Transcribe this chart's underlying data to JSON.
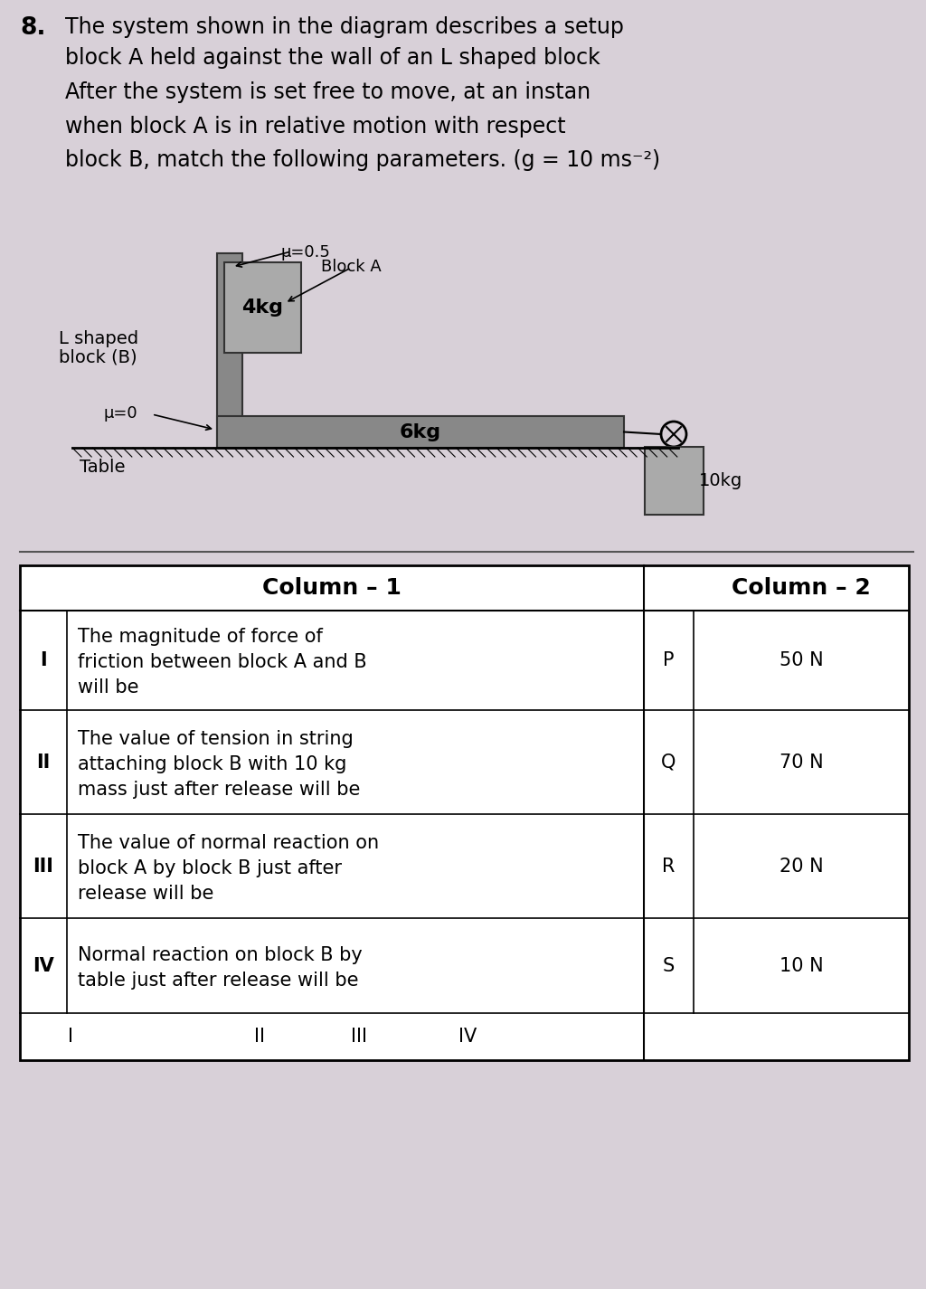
{
  "bg_color": "#d8d0d8",
  "q_num": "8.",
  "q_lines": [
    "The system shown in the diagram describes a setup",
    "block A held against the wall of an L shaped block",
    "After the system is set free to move, at an instan",
    "when block A is in relative motion with respect",
    "block B, match the following parameters. (g = 10 ms⁻²)"
  ],
  "mu_top": "μ=0.5",
  "block_a_label": "Block A",
  "block_a_mass": "4kg",
  "l_line1": "L shaped",
  "l_line2": "block (B)",
  "mu_bot": "μ=0",
  "block_b_mass": "6kg",
  "table_label": "Table",
  "hang_mass": "10kg",
  "col1_header": "Column – 1",
  "col2_header": "Column – 2",
  "rows": [
    {
      "r": "I",
      "text_lines": [
        "The magnitude of force of",
        "friction between block A and B",
        "will be"
      ],
      "c": "P",
      "v": "50 N"
    },
    {
      "r": "II",
      "text_lines": [
        "The value of tension in string",
        "attaching block B with 10 kg",
        "mass just after release will be"
      ],
      "c": "Q",
      "v": "70 N"
    },
    {
      "r": "III",
      "text_lines": [
        "The value of normal reaction on",
        "block A by block B just after",
        "release will be"
      ],
      "c": "R",
      "v": "20 N"
    },
    {
      "r": "IV",
      "text_lines": [
        "Normal reaction on block B by",
        "table just after release will be"
      ],
      "c": "S",
      "v": "10 N"
    }
  ],
  "bot_labels": [
    "I",
    "II",
    "III",
    "IV"
  ]
}
